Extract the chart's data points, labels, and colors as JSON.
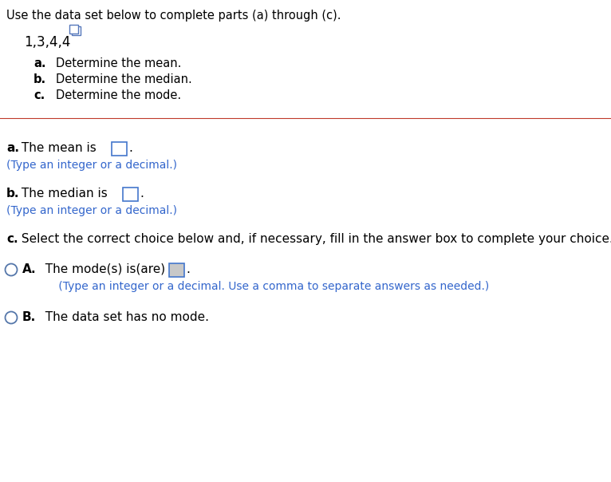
{
  "bg_color": "#ffffff",
  "top_instruction": "Use the data set below to complete parts (a) through (c).",
  "data_set": "1,3,4,4",
  "parts": [
    "Determine the mean.",
    "Determine the median.",
    "Determine the mode."
  ],
  "part_labels": [
    "a.",
    "b.",
    "c."
  ],
  "divider_color": "#c0392b",
  "section_a_label": "a.",
  "section_a_text": " The mean is ",
  "section_a_hint": "(Type an integer or a decimal.)",
  "section_b_label": "b.",
  "section_b_text": " The median is ",
  "section_b_hint": "(Type an integer or a decimal.)",
  "section_c_label": "c.",
  "section_c_text": " Select the correct choice below and, if necessary, fill in the answer box to complete your choice.",
  "choice_A_label": "A.",
  "choice_A_text": "  The mode(s) is(are) ",
  "choice_A_hint": "      (Type an integer or a decimal. Use a comma to separate answers as needed.)",
  "choice_B_label": "B.",
  "choice_B_text": "  The data set has no mode.",
  "text_color": "#000000",
  "blue_color": "#3366cc",
  "answer_box_border": "#4477cc",
  "answer_box_fill": "#ffffff",
  "mode_box_fill": "#c8c8c8",
  "radio_color": "#5577aa",
  "icon_color": "#5577bb"
}
